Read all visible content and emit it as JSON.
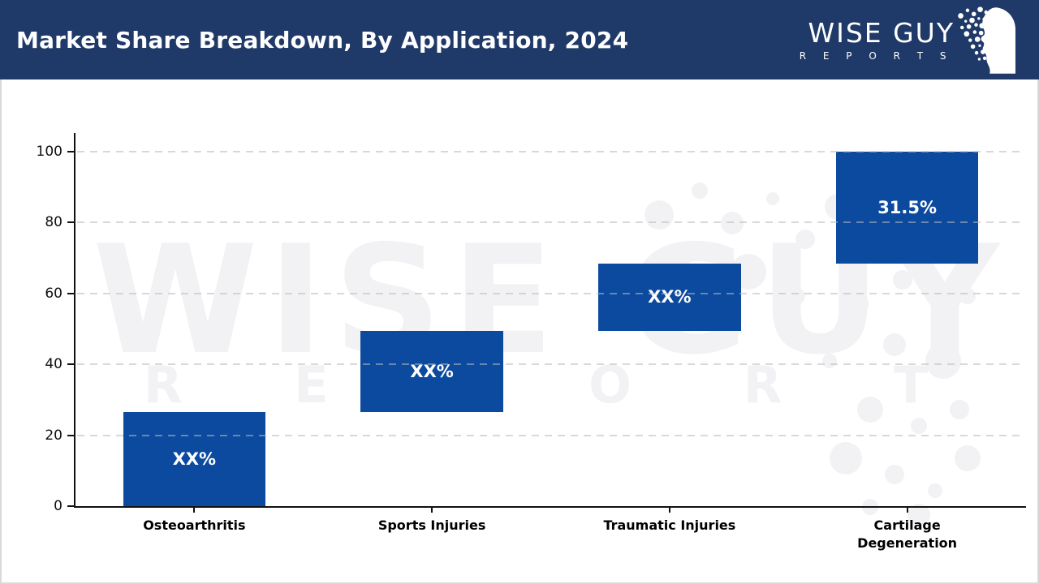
{
  "header": {
    "bg": "#1f3a68",
    "title": "Market Share Breakdown, By Application, 2024",
    "logo": {
      "line1": "WISE GUY",
      "line2": "R E P O R T S"
    }
  },
  "watermark": {
    "line1": "WISE GUY",
    "line2": "R E P O R T S"
  },
  "chart_data": {
    "type": "bar",
    "subtype": "floating-waterfall",
    "title": "Market Share Breakdown, By Application, 2024",
    "categories": [
      "Osteoarthritis",
      "Sports Injuries",
      "Traumatic Injuries",
      "Cartilage Degeneration"
    ],
    "series": [
      {
        "name": "Market Share (%)",
        "segments": [
          {
            "category": "Osteoarthritis",
            "start": 0,
            "end": 26.5,
            "label": "XX%"
          },
          {
            "category": "Sports Injuries",
            "start": 26.5,
            "end": 49.5,
            "label": "XX%"
          },
          {
            "category": "Traumatic Injuries",
            "start": 49.5,
            "end": 68.5,
            "label": "XX%"
          },
          {
            "category": "Cartilage Degeneration",
            "start": 68.5,
            "end": 100,
            "label": "31.5%"
          }
        ]
      }
    ],
    "xlabel": "",
    "ylabel": "",
    "ylim": [
      0,
      100
    ],
    "yticks": [
      0,
      20,
      40,
      60,
      80,
      100
    ],
    "grid": "horizontal-dashed",
    "legend": "none",
    "bar_color": "#0b4a9e",
    "bar_label_color": "#ffffff",
    "axis_color": "#111111",
    "gridline_color": "#d8d8d8",
    "tick_label_color": "#111111"
  }
}
